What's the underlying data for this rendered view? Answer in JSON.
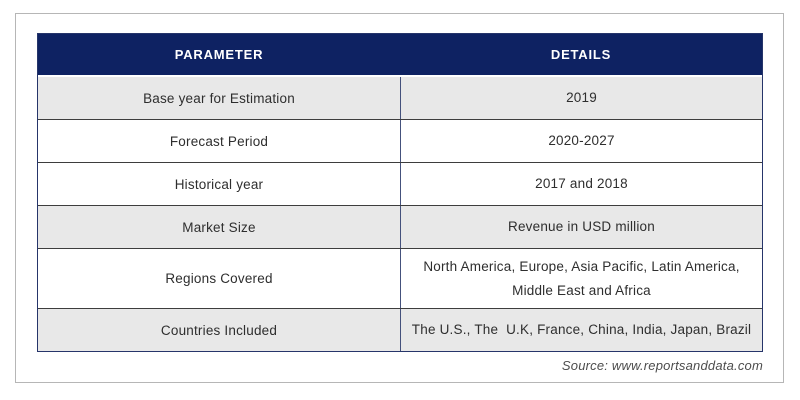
{
  "chart_data": {
    "type": "table",
    "columns": [
      "PARAMETER",
      "DETAILS"
    ],
    "rows": [
      [
        "Base year for Estimation",
        "2019"
      ],
      [
        "Forecast Period",
        "2020-2027"
      ],
      [
        "Historical year",
        "2017 and 2018"
      ],
      [
        "Market Size",
        "Revenue in USD million"
      ],
      [
        "Regions Covered",
        "North America, Europe, Asia Pacific, Latin America,\nMiddle East and Africa"
      ],
      [
        "Countries Included",
        "The U.S., The  U.K, France, China, India, Japan, Brazil"
      ]
    ],
    "source": "Source: www.reportsanddata.com",
    "layout": {
      "header_position": "top",
      "grid": true,
      "shaded_row_indices": [
        0,
        3,
        5
      ]
    }
  },
  "colors": {
    "header_bg": "#0e2262",
    "header_text": "#ffffff",
    "row_shaded_bg": "#e8e8e8",
    "row_plain_bg": "#ffffff",
    "grid_line": "#3d3d3d",
    "column_divider": "#44517c",
    "table_outer_border": "#26356a",
    "card_border": "#b6b6b6",
    "body_text": "#2e2e2e",
    "source_text": "#4d4d4d"
  }
}
